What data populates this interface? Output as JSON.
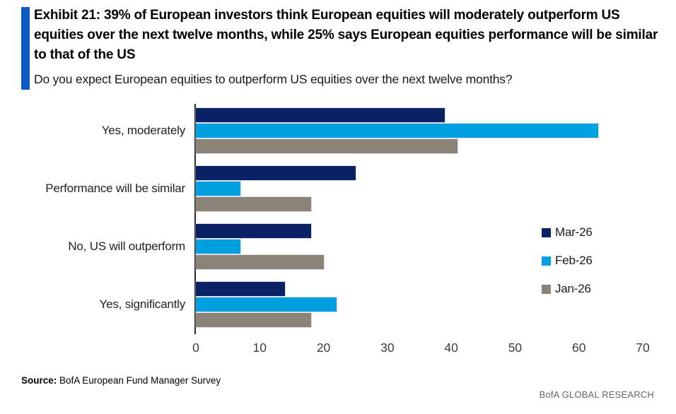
{
  "header": {
    "title_lines": [
      "Exhibit 21: 39% of European investors think European equities will moderately outperform US",
      "equities over the next twelve months, while 25% says European equities performance will be similar",
      "to that of the US"
    ],
    "question": "Do you expect European equities to outperform US equities over the next twelve months?"
  },
  "chart_data": {
    "type": "bar",
    "orientation": "horizontal",
    "categories": [
      "Yes, moderately",
      "Performance will be similar",
      "No, US will outperform",
      "Yes, significantly"
    ],
    "series": [
      {
        "name": "Mar-26",
        "color": "#0a2166",
        "values": [
          39,
          25,
          18,
          14
        ]
      },
      {
        "name": "Feb-26",
        "color": "#009fdf",
        "values": [
          63,
          7,
          7,
          22
        ]
      },
      {
        "name": "Jan-26",
        "color": "#8b8278",
        "values": [
          41,
          18,
          20,
          18
        ]
      }
    ],
    "xlim": [
      0,
      70
    ],
    "x_ticks": [
      0,
      10,
      20,
      30,
      40,
      50,
      60,
      70
    ],
    "grid": false,
    "legend_position": "right"
  },
  "footer": {
    "source_label": "Source:",
    "source_text": " BofA European Fund Manager Survey",
    "brand": "BofA GLOBAL RESEARCH"
  },
  "colors": {
    "accent": "#1059c4",
    "mar26_navy": "#0a2166",
    "feb26_blue": "#009fdf",
    "jan26_gray": "#8b8278",
    "axis": "#2b2b2b",
    "brand_text": "#64666a"
  }
}
